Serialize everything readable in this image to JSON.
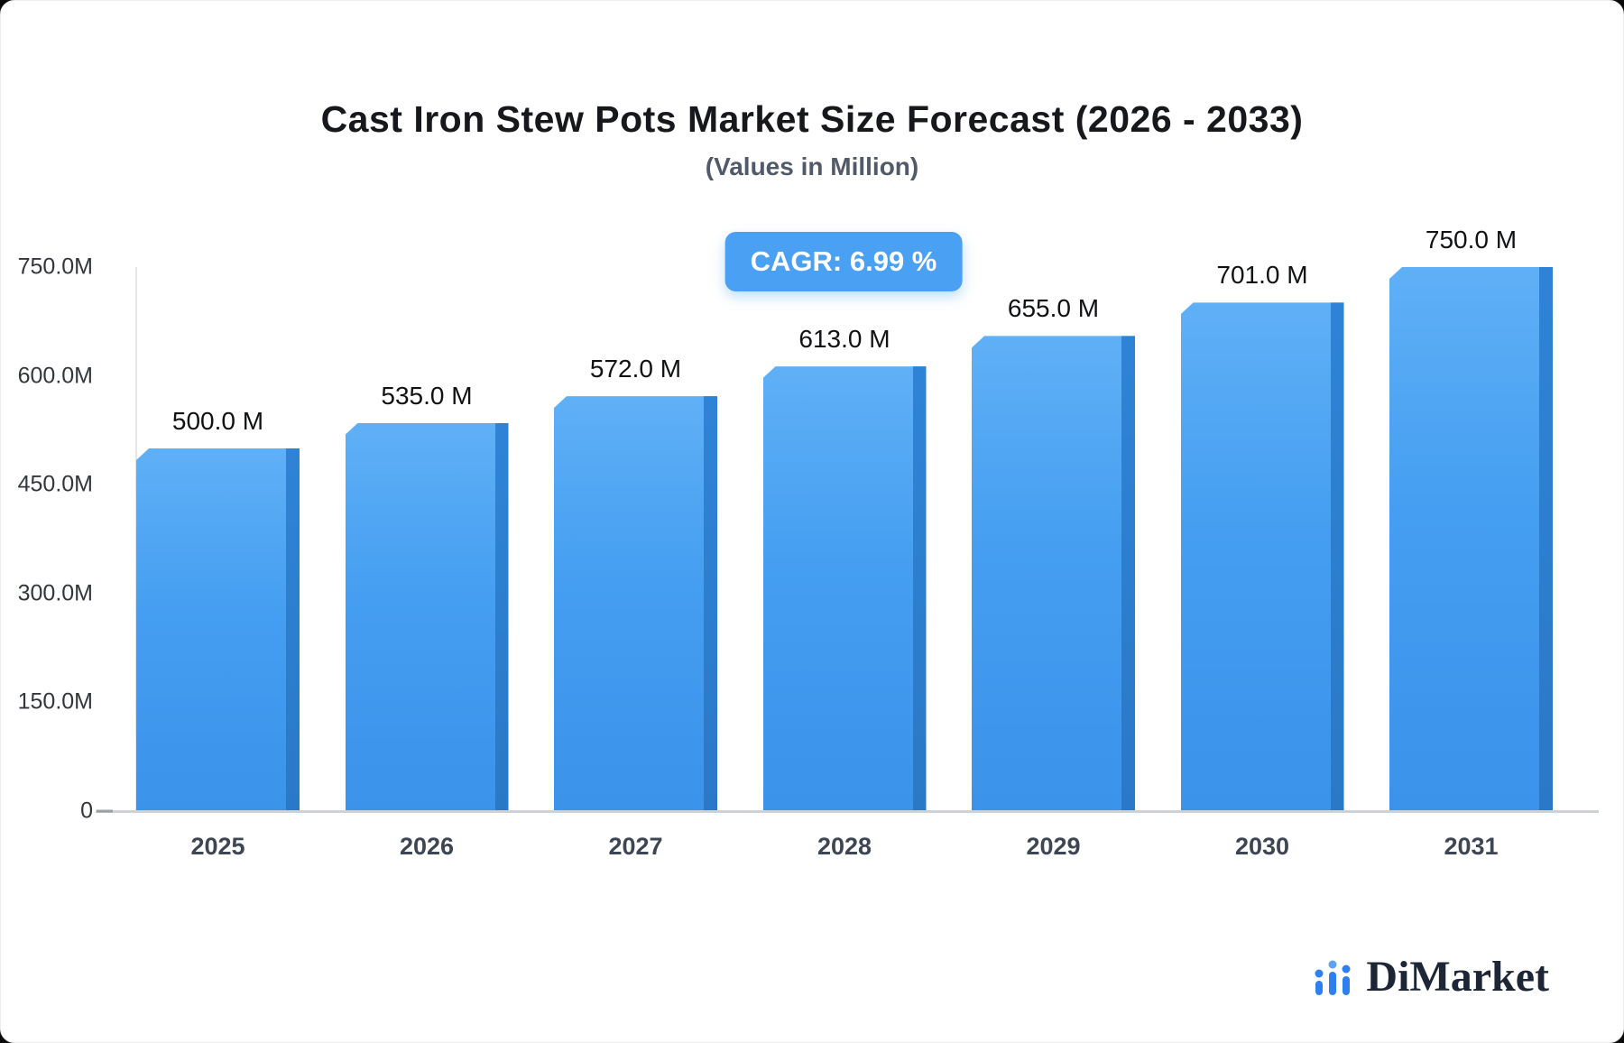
{
  "chart_data": {
    "type": "bar",
    "title": "Cast Iron Stew Pots Market Size Forecast (2026 - 2033)",
    "subtitle": "(Values in Million)",
    "categories": [
      "2025",
      "2026",
      "2027",
      "2028",
      "2029",
      "2030",
      "2031"
    ],
    "values": [
      500.0,
      535.0,
      572.0,
      613.0,
      655.0,
      701.0,
      750.0
    ],
    "value_labels": [
      "500.0 M",
      "535.0 M",
      "572.0 M",
      "613.0 M",
      "655.0 M",
      "701.0 M",
      "750.0 M"
    ],
    "xlabel": "",
    "ylabel": "",
    "ylim": [
      0,
      750
    ],
    "grid": false,
    "legend_position": "none",
    "yticks": [
      {
        "value": 750,
        "label": "750.0M",
        "dash": false
      },
      {
        "value": 600,
        "label": "600.0M",
        "dash": false
      },
      {
        "value": 450,
        "label": "450.0M",
        "dash": false
      },
      {
        "value": 300,
        "label": "300.0M",
        "dash": false
      },
      {
        "value": 150,
        "label": "150.0M",
        "dash": false
      },
      {
        "value": 0,
        "label": "0",
        "dash": true
      }
    ],
    "bar_face_color_top": "#5fb0f6",
    "bar_face_color_bottom": "#3b93ea",
    "bar_side_color": "#2a79c6"
  },
  "badge": {
    "label": "CAGR: 6.99 %",
    "color": "#4aa0f2"
  },
  "branding": {
    "name": "DiMarket",
    "icon": "dimarket-logo-icon",
    "icon_color": "#2e80ef",
    "text_color": "#1d2636"
  }
}
